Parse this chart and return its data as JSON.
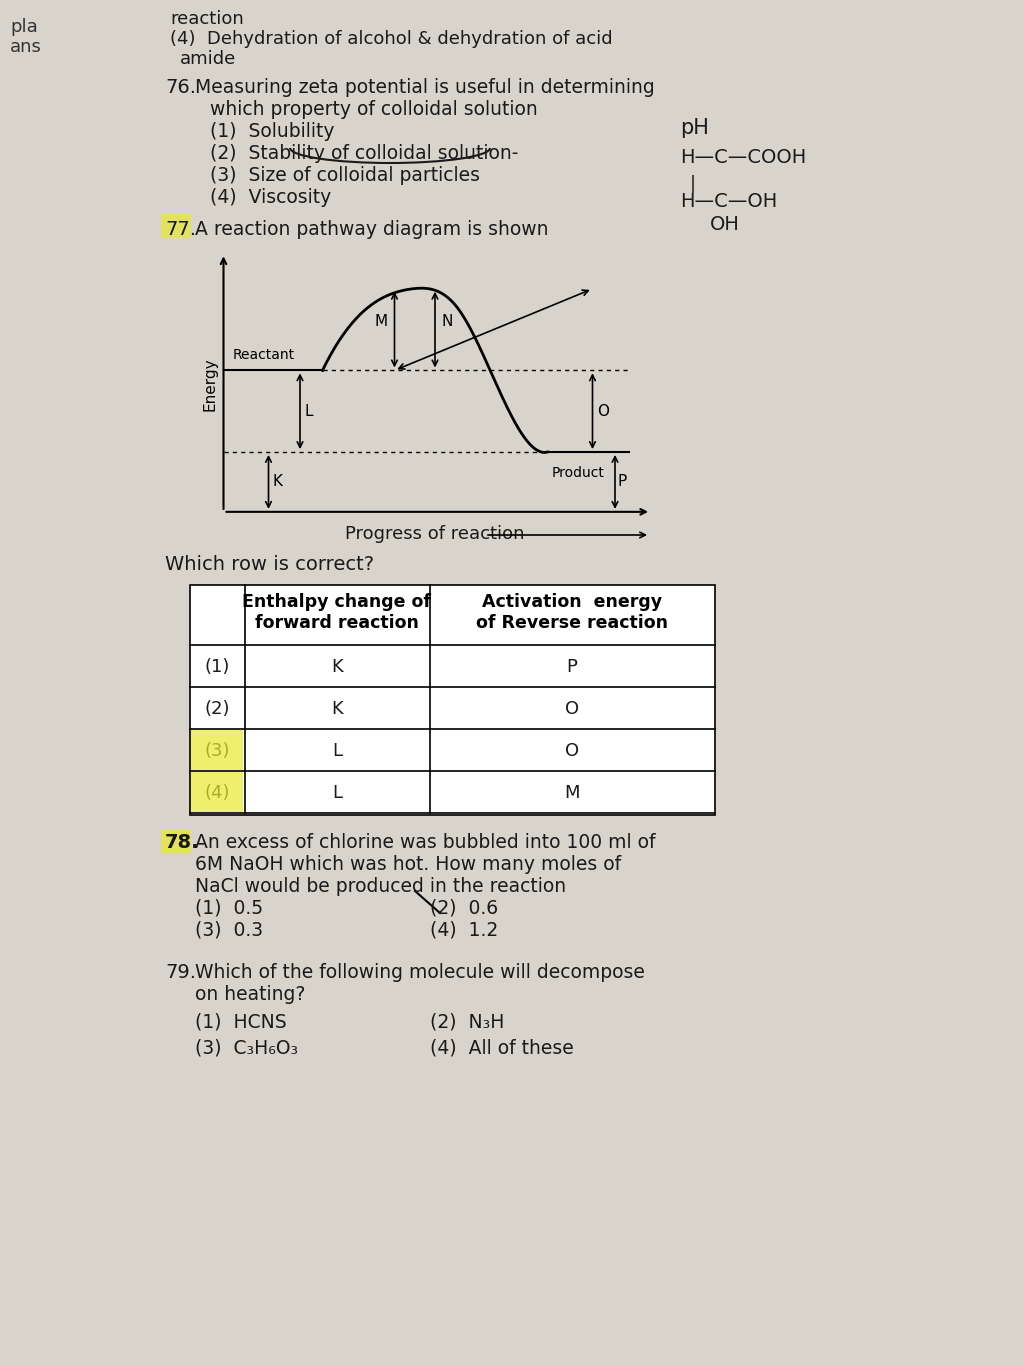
{
  "bg_color": "#d8d4cc",
  "title_q76": "76. Measuring zeta potential is useful in determining\n    which property of colloidal solution\n    (1) Solubility\n    (2) Stability of colloidal solution-\n    (3) Size of colloidal particles\n    (4) Viscosity",
  "title_q77": "77. A reaction pathway diagram is shown",
  "xlabel": "Progress of reaction",
  "ylabel": "Energy",
  "which_row": "Which row is correct?",
  "col1_header": "Enthalpy change of\nforward reaction",
  "col2_header": "Activation  energy\nof Reverse reaction",
  "rows": [
    [
      "(1)",
      "K",
      "P"
    ],
    [
      "(2)",
      "K",
      "O"
    ],
    [
      "(3)",
      "L",
      "O"
    ],
    [
      "(4)",
      "L",
      "M"
    ]
  ],
  "q78_text": "78. An excess of chlorine was bubbled into 100 ml of\n    6M NaOH which was hot. How many moles of\n    NaCl would be produced in the reaction\n    (1)  0.5                    (2)  0.6\n    (3)  0.3                    (4)  1.2",
  "q79_text": "79. Which of the following molecule will decompose\n    on heating?\n    (1)  HCNS                   (2)  N₃H\n    (3)  C₃H₆O₃                  (4)  All of these",
  "q4_text": "(4) Dehydration of alcohol & dehydration of acid\n    amide",
  "reaction_text": "reaction",
  "top_labels": [
    "pla",
    "ans"
  ]
}
